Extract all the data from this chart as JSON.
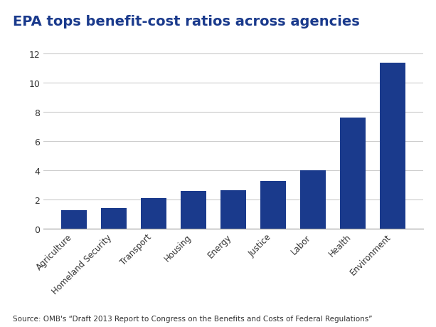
{
  "title": "EPA tops benefit-cost ratios across agencies",
  "categories": [
    "Agriculture",
    "Homeland Security",
    "Transport",
    "Housing",
    "Energy",
    "Justice",
    "Labor",
    "Health",
    "Environment"
  ],
  "values": [
    1.25,
    1.4,
    2.1,
    2.6,
    2.65,
    3.25,
    4.0,
    7.6,
    11.35
  ],
  "bar_color": "#1a3a8c",
  "ylim": [
    0,
    13
  ],
  "yticks": [
    0,
    2,
    4,
    6,
    8,
    10,
    12
  ],
  "source_text": "Source: OMB's “Draft 2013 Report to Congress on the Benefits and Costs of Federal Regulations”",
  "background_color": "#ffffff",
  "title_color": "#1a3a8c",
  "title_fontsize": 14,
  "source_fontsize": 7.5,
  "tick_label_fontsize": 8.5,
  "ytick_label_fontsize": 9
}
